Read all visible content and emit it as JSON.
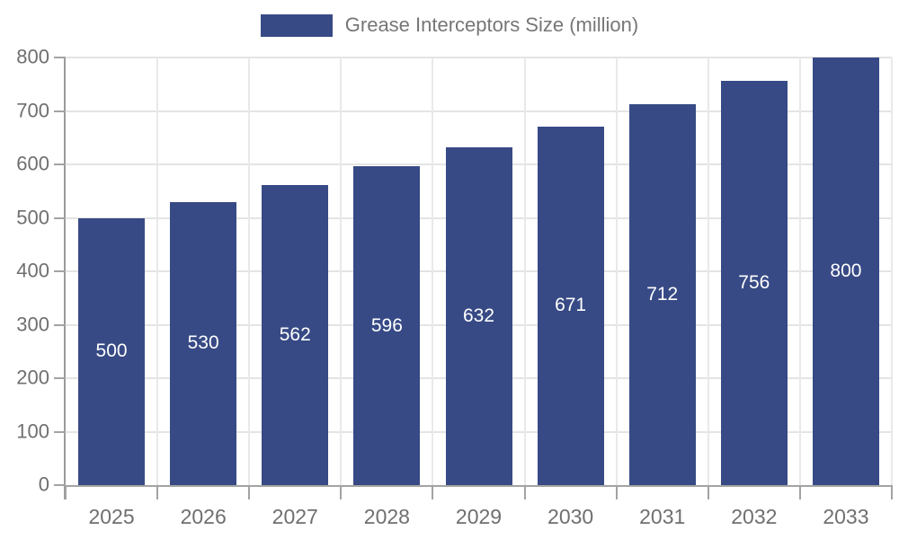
{
  "legend": {
    "label": "Grease Interceptors Size (million)",
    "swatch_color": "#374A85"
  },
  "chart_data": {
    "type": "bar",
    "title": "Grease Interceptors Size (million)",
    "categories": [
      "2025",
      "2026",
      "2027",
      "2028",
      "2029",
      "2030",
      "2031",
      "2032",
      "2033"
    ],
    "values": [
      500,
      530,
      562,
      596,
      632,
      671,
      712,
      756,
      800
    ],
    "series": [
      {
        "name": "Grease Interceptors Size (million)",
        "values": [
          500,
          530,
          562,
          596,
          632,
          671,
          712,
          756,
          800
        ]
      }
    ],
    "xlabel": "",
    "ylabel": "",
    "ylim": [
      0,
      800
    ],
    "yticks": [
      0,
      100,
      200,
      300,
      400,
      500,
      600,
      700,
      800
    ],
    "grid": true,
    "legend_position": "top",
    "value_labels": "inside-center"
  },
  "colors": {
    "bar": "#374A85",
    "value_label": "#ffffff",
    "gridline": "#e4e4e4",
    "axis_line": "#9b9b9b",
    "tick_label": "#6f6f6f",
    "legend_text": "#767676",
    "background": "#ffffff"
  }
}
